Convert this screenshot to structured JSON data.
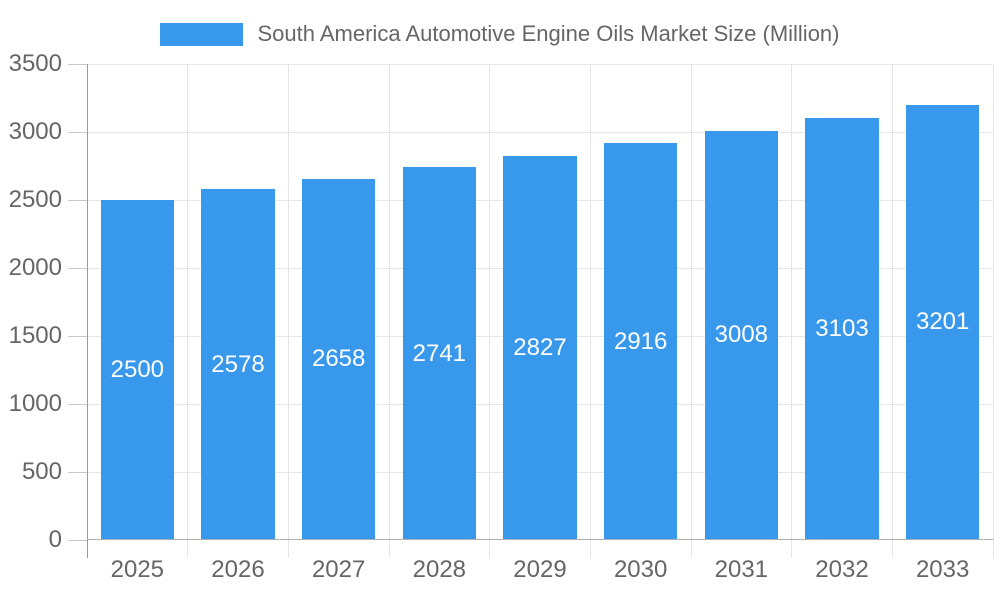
{
  "chart_data": {
    "type": "bar",
    "title": "South America Automotive Engine Oils Market Size (Million)",
    "categories": [
      "2025",
      "2026",
      "2027",
      "2028",
      "2029",
      "2030",
      "2031",
      "2032",
      "2033"
    ],
    "values": [
      2500,
      2578,
      2658,
      2741,
      2827,
      2916,
      3008,
      3103,
      3201
    ],
    "xlabel": "",
    "ylabel": "",
    "ylim": [
      0,
      3500
    ],
    "yticks": [
      0,
      500,
      1000,
      1500,
      2000,
      2500,
      3000,
      3500
    ],
    "grid": "on",
    "legend_position": "top",
    "bar_color": "#3898EC",
    "bar_label_color": "#ffffff",
    "axis_text_color": "#666666",
    "grid_color": "#e6e6e6",
    "axis_line_color": "#999999",
    "baseline_color": "#b0b0b0"
  }
}
